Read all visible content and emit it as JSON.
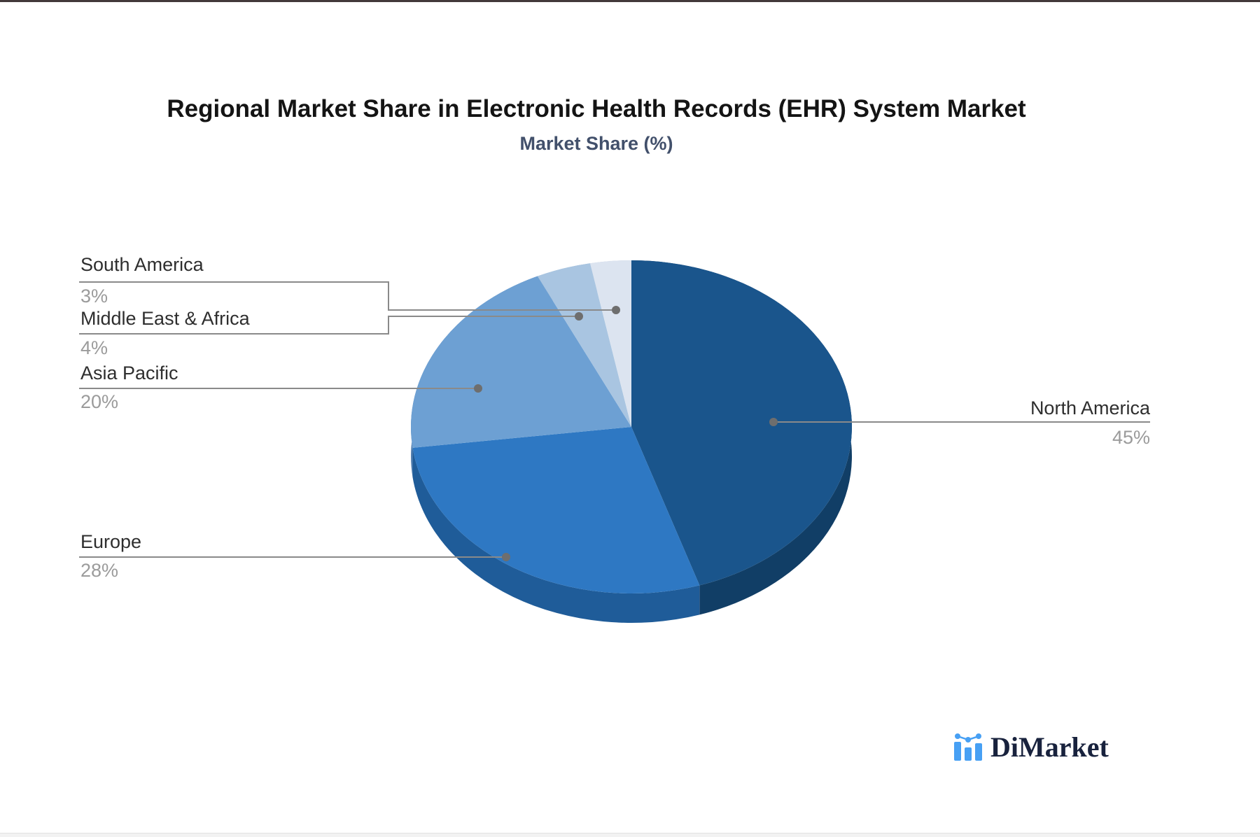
{
  "page": {
    "title": "Regional Market Share in Electronic Health Records (EHR) System Market",
    "subtitle": "Market Share (%)"
  },
  "chart_data": {
    "type": "pie",
    "title": "Regional Market Share in Electronic Health Records (EHR) System Market",
    "subtitle": "Market Share (%)",
    "unit": "%",
    "style": "3d-pie",
    "start_angle": "12-o-clock, clockwise",
    "legend_position": "none",
    "labels_style": "leader-lines",
    "slices": [
      {
        "label": "North America",
        "value": 45,
        "display": "45%",
        "color": "#1A558C",
        "side_color": "#113E66"
      },
      {
        "label": "Europe",
        "value": 28,
        "display": "28%",
        "color": "#2E78C3",
        "side_color": "#1F5C99"
      },
      {
        "label": "Asia Pacific",
        "value": 20,
        "display": "20%",
        "color": "#6DA0D3",
        "side_color": "#537FB0"
      },
      {
        "label": "Middle East & Africa",
        "value": 4,
        "display": "4%",
        "color": "#A9C5E1",
        "side_color": "#8AA8C8"
      },
      {
        "label": "South America",
        "value": 3,
        "display": "3%",
        "color": "#DCE4F0",
        "side_color": "#BCC8DC"
      }
    ],
    "leader_line_color": "#8A8A8A",
    "leader_dot_color": "#6E6E6E"
  },
  "branding": {
    "logo_text": "DiMarket",
    "logo_icon": "bar-line-chart-icon",
    "logo_icon_color": "#47A0F4"
  }
}
